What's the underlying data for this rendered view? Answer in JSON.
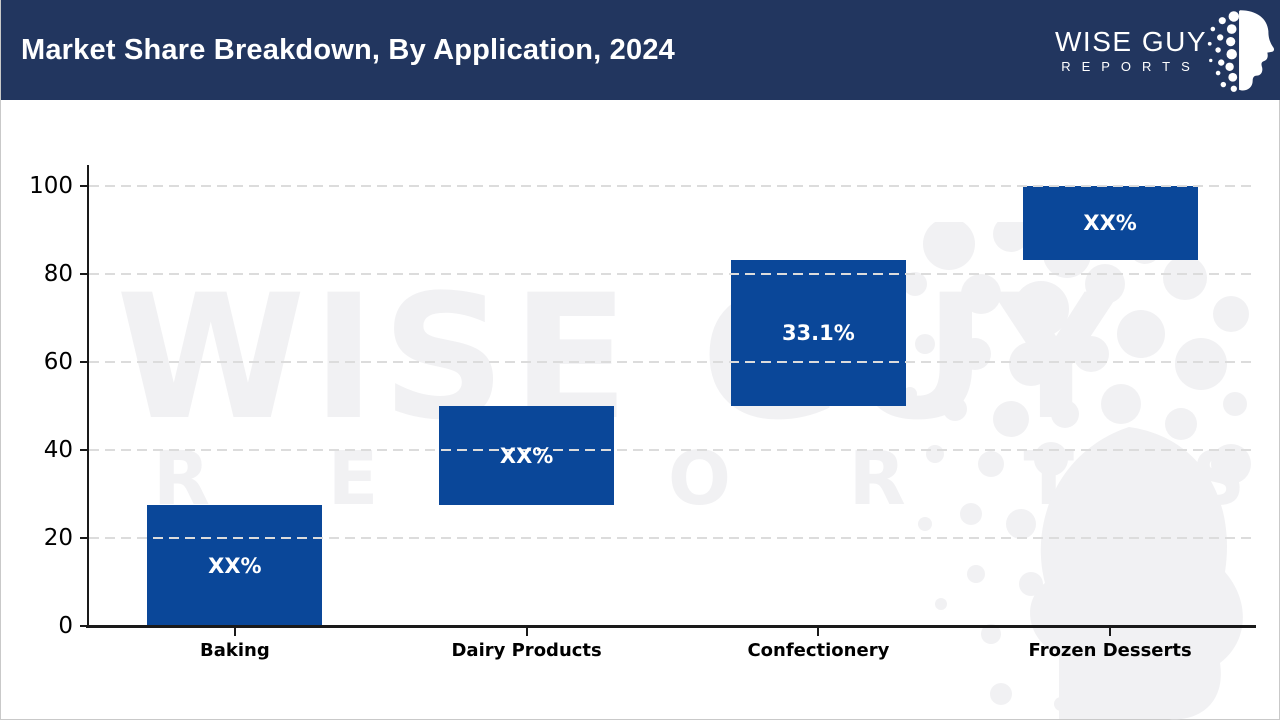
{
  "header": {
    "title": "Market Share Breakdown, By Application, 2024"
  },
  "logo": {
    "line1": "WISE GUY",
    "line2": "REPORTS"
  },
  "watermark": {
    "line1": "WISE GUY",
    "line2": "R E P O R T S"
  },
  "colors": {
    "header_bg": "#22365f",
    "title_text": "#ffffff",
    "bar": "#0a4799",
    "bar_label": "#ffffff",
    "grid": "#dcdcdc",
    "axis": "#1a1a1a",
    "tick_text": "#000000",
    "watermark": "#f1f1f3"
  },
  "chart_data": {
    "type": "bar",
    "variant": "floating-waterfall",
    "title": "Market Share Breakdown, By Application, 2024",
    "categories": [
      "Baking",
      "Dairy Products",
      "Confectionery",
      "Frozen Desserts"
    ],
    "segments": [
      {
        "category": "Baking",
        "start": 0,
        "end": 27.5,
        "label": "XX%"
      },
      {
        "category": "Dairy Products",
        "start": 27.5,
        "end": 50,
        "label": "XX%"
      },
      {
        "category": "Confectionery",
        "start": 50,
        "end": 83.1,
        "label": "33.1%"
      },
      {
        "category": "Frozen Desserts",
        "start": 83.1,
        "end": 100,
        "label": "XX%"
      }
    ],
    "y_ticks": [
      0,
      20,
      40,
      60,
      80,
      100
    ],
    "ylim": [
      0,
      105
    ],
    "xlabel": "",
    "ylabel": "",
    "legend": null,
    "grid": {
      "show": true,
      "orientation": "horizontal",
      "style": "dashed",
      "over_bars": true
    },
    "bar_color": "#0a4799",
    "bar_label_color": "#ffffff"
  }
}
